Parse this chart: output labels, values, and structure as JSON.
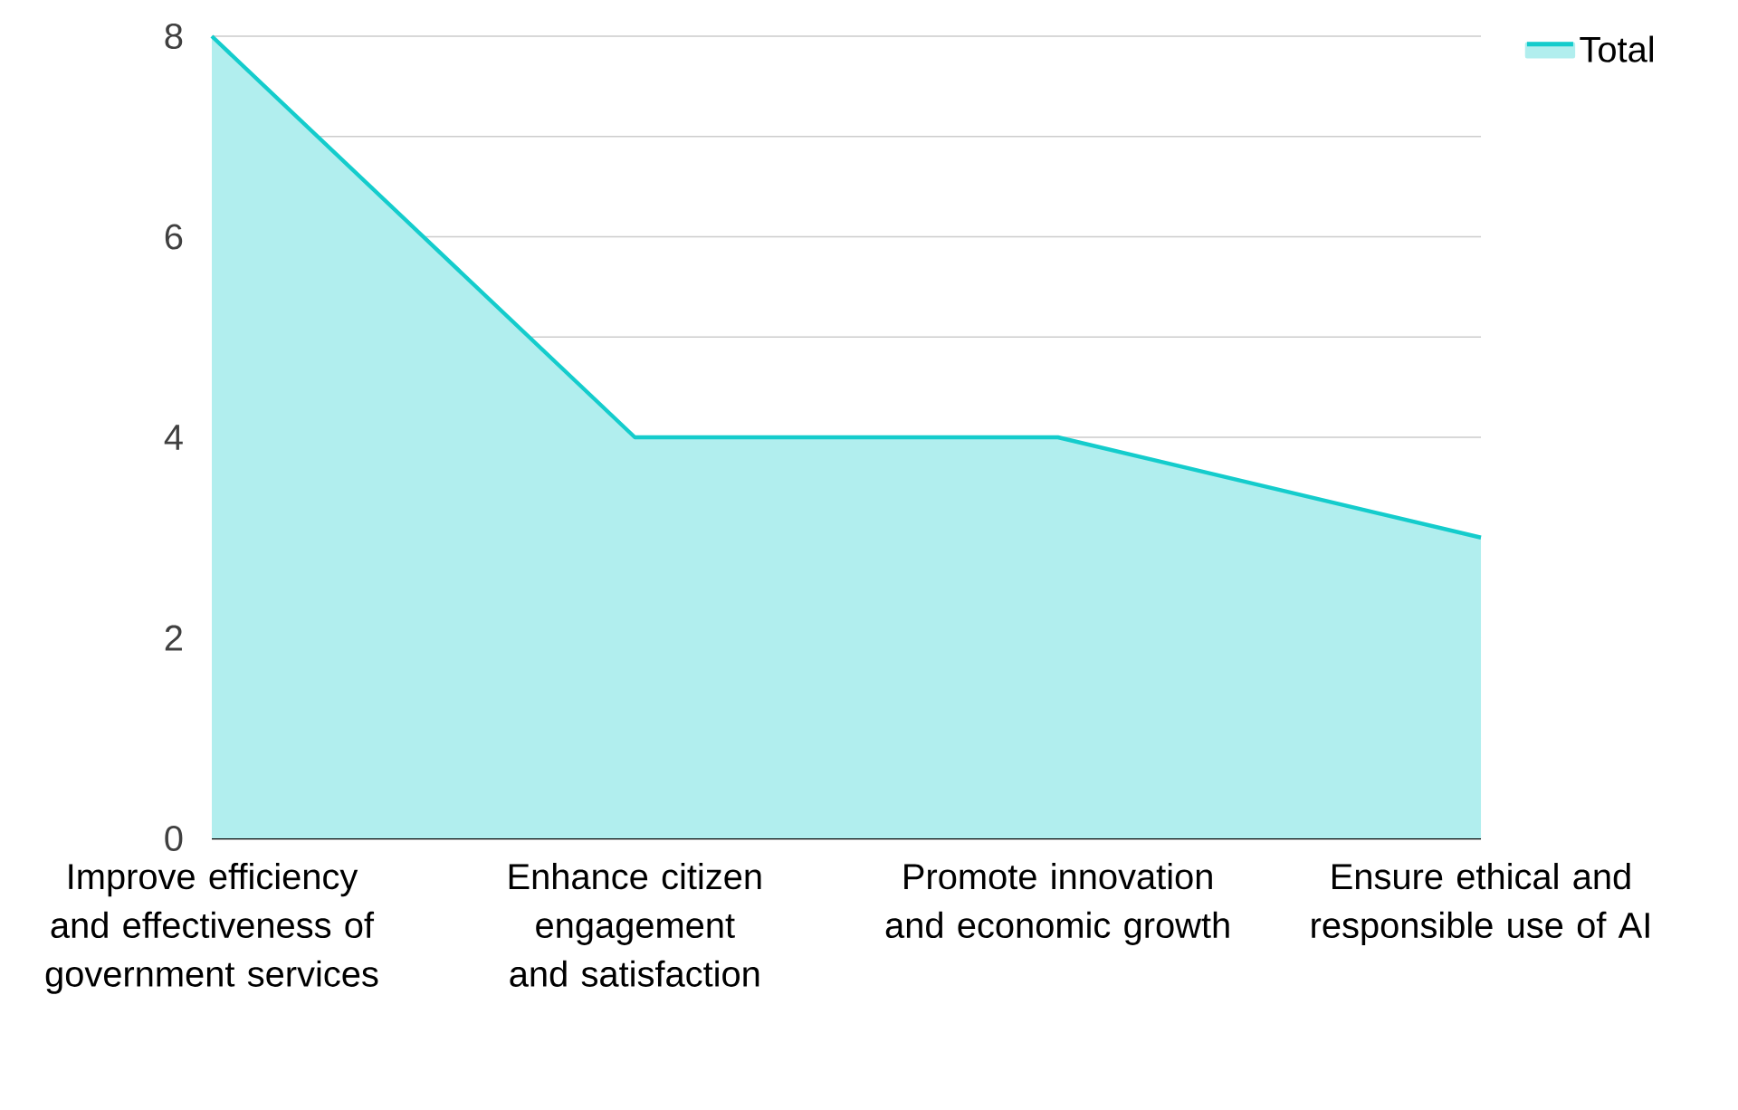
{
  "chart_data": {
    "type": "area",
    "categories": [
      "Improve efficiency and effectiveness of government services",
      "Enhance citizen engagement and satisfaction",
      "Promote innovation and economic growth",
      "Ensure ethical and responsible use of AI"
    ],
    "series": [
      {
        "name": "Total",
        "color": "#14cccc",
        "values": [
          8,
          4,
          4,
          3
        ]
      }
    ],
    "ylim": [
      0,
      8
    ],
    "yticks": [
      0,
      {
        "value": 1,
        "label": null
      },
      2,
      {
        "value": 3,
        "label": null
      },
      4,
      {
        "value": 5,
        "label": null
      },
      6,
      {
        "value": 7,
        "label": null
      },
      8
    ],
    "grid": "y",
    "legend": "top right",
    "marker": "none",
    "line_style": "solid"
  }
}
